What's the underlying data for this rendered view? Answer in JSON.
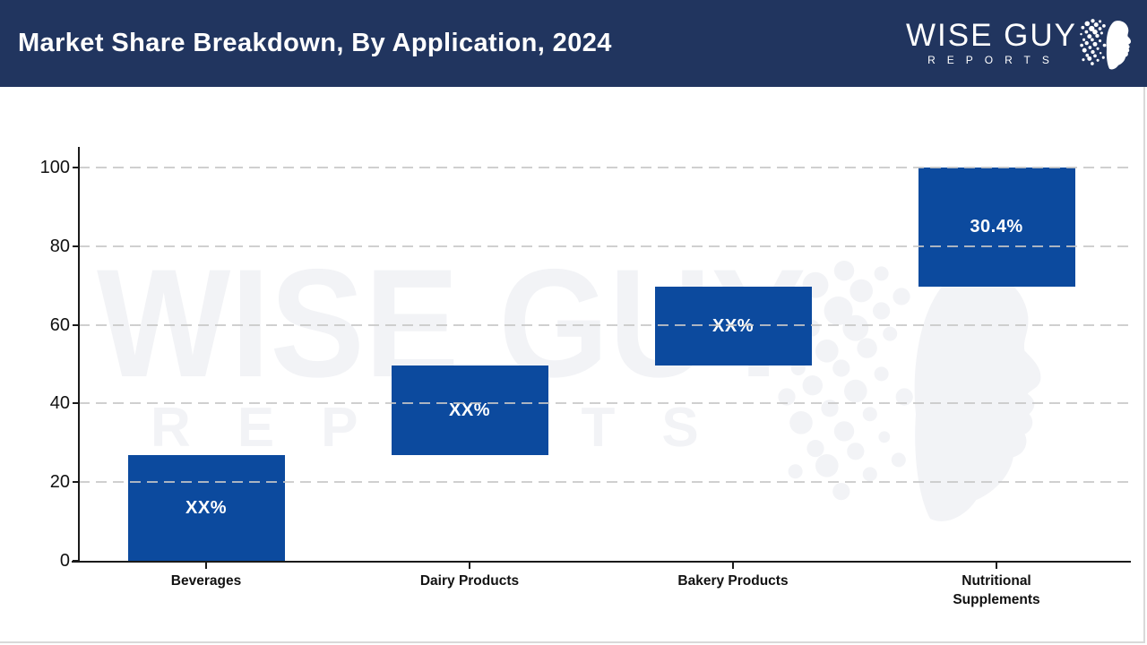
{
  "header": {
    "title": "Market Share Breakdown, By Application, 2024",
    "logo": {
      "line1": "WISE GUY",
      "line2": "REPORTS"
    },
    "bg_color": "#21355f"
  },
  "watermark": {
    "line1": "WISE GUY",
    "line2": "REPORTS",
    "color": "#f2f3f6"
  },
  "chart_data": {
    "type": "bar",
    "subtype": "floating-waterfall",
    "title": "Market Share Breakdown, By Application, 2024",
    "categories": [
      "Beverages",
      "Dairy Products",
      "Bakery Products",
      "Nutritional Supplements"
    ],
    "series": [
      {
        "name": "Market Share %",
        "starts": [
          0,
          26.8,
          49.6,
          69.6
        ],
        "ends": [
          26.8,
          49.6,
          69.6,
          100
        ]
      }
    ],
    "bar_labels": [
      "XX%",
      "XX%",
      "XX%",
      "30.4%"
    ],
    "xlabel": "",
    "ylabel": "",
    "ylim": [
      0,
      100
    ],
    "yticks": [
      0,
      20,
      40,
      60,
      80,
      100
    ],
    "grid": "horizontal-dashed",
    "legend": "none",
    "bar_color": "#0c4a9e",
    "gridline_color": "#c7c7c7",
    "axis_color": "#1a1a1a"
  }
}
